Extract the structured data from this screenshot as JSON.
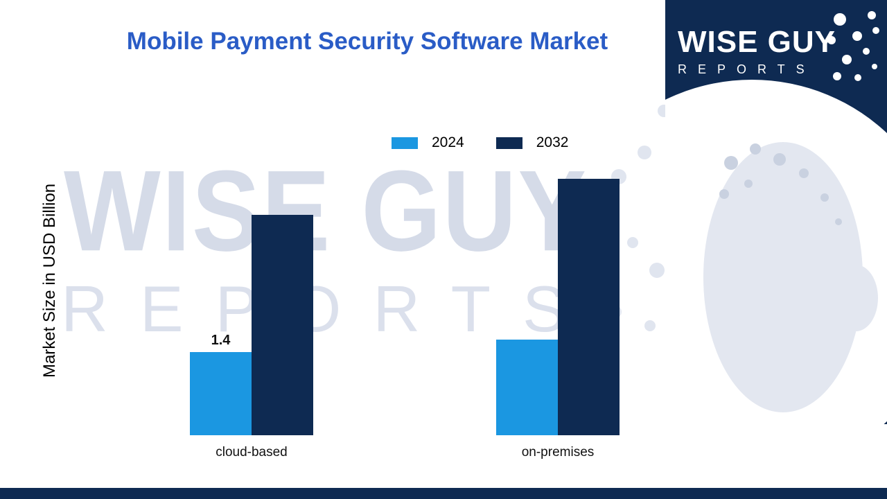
{
  "page": {
    "title": "Mobile Payment Security Software Market",
    "title_color": "#2a5cc6"
  },
  "logo": {
    "line1": "WISE GUY",
    "line2": "REPORTS",
    "bg_color": "#0e2a52"
  },
  "watermark": {
    "line1": "WISE GUY",
    "line2": "REPORTS"
  },
  "chart_data": {
    "type": "bar",
    "title": "Mobile Payment Security Software Market",
    "categories": [
      "cloud-based",
      "on-premises"
    ],
    "series": [
      {
        "name": "2024",
        "color": "#1b97e1",
        "values": [
          1.4,
          1.6
        ],
        "labels": [
          "1.4",
          ""
        ]
      },
      {
        "name": "2032",
        "color": "#0e2a52",
        "values": [
          3.7,
          4.3
        ],
        "labels": [
          "",
          ""
        ]
      }
    ],
    "ylabel": "Market Size in USD Billion",
    "value_unit": "USD Billion",
    "ylim": [
      0,
      4.5
    ],
    "grid": false,
    "legend_position": "top"
  },
  "footer": {
    "color": "#0e2a52"
  }
}
